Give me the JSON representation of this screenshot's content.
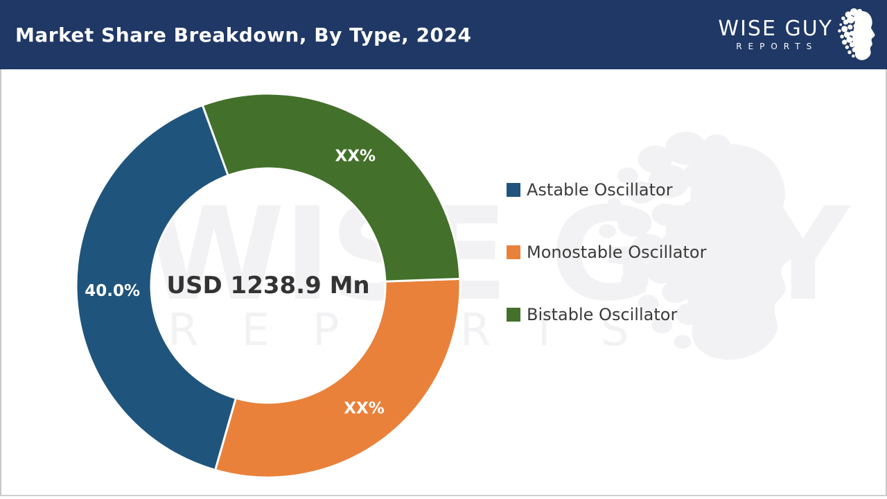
{
  "header": {
    "title": "Market Share Breakdown, By Type, 2024",
    "logo": {
      "wordmark": "WISE GUY",
      "subtitle": "REPORTS"
    }
  },
  "watermark": {
    "line1": "WISE GUY",
    "line2": "REPORTS"
  },
  "colors": {
    "header_bg": "#203865",
    "astable_blue": "#1F547C",
    "monostable_orange": "#E9813B",
    "bistable_green": "#43702A",
    "center_text": "#333333",
    "legend_text": "#3B3B3B",
    "slice_label_text": "#FFFFFF",
    "watermark_gray": "#F2F2F4",
    "panel_border": "#C9C9C9"
  },
  "chart_data": {
    "type": "pie",
    "variant": "donut",
    "title": "Market Share Breakdown, By Type, 2024",
    "center_label": "USD 1238.9 Mn",
    "start_angle_deg": 110,
    "direction": "counterclockwise",
    "inner_radius_ratio": 0.61,
    "legend_position": "right",
    "slices": [
      {
        "label": "Astable Oscillator",
        "value_pct": 40.0,
        "display_label": "40.0%",
        "color": "#1F547C"
      },
      {
        "label": "Monostable Oscillator",
        "value_pct": 30.0,
        "display_label": "XX%",
        "color": "#E9813B"
      },
      {
        "label": "Bistable Oscillator",
        "value_pct": 30.0,
        "display_label": "XX%",
        "color": "#43702A"
      }
    ]
  }
}
